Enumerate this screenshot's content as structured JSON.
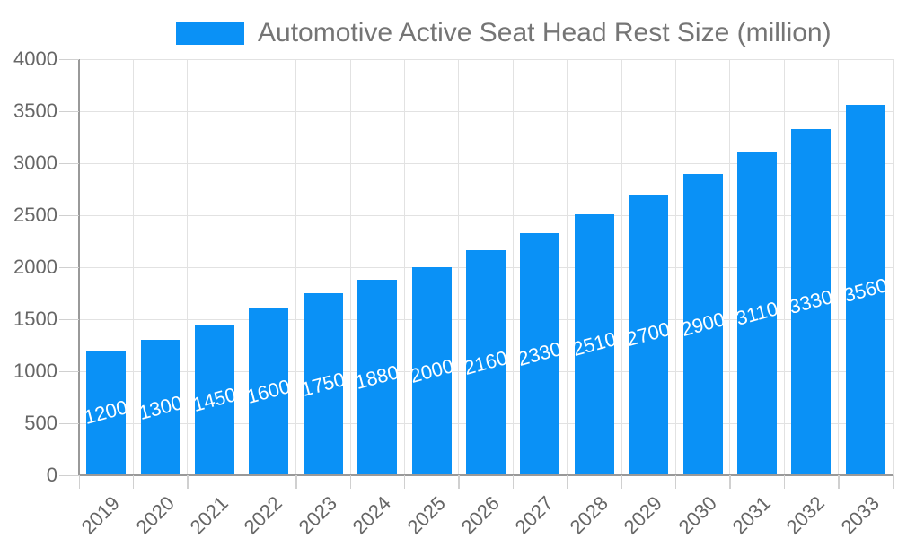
{
  "chart_data": {
    "type": "bar",
    "title": "Automotive Active Seat Head Rest Size (million)",
    "legend": [
      "Automotive Active Seat Head Rest Size (million)"
    ],
    "legend_position": "top",
    "categories": [
      "2019",
      "2020",
      "2021",
      "2022",
      "2023",
      "2024",
      "2025",
      "2026",
      "2027",
      "2028",
      "2029",
      "2030",
      "2031",
      "2032",
      "2033"
    ],
    "values": [
      1200,
      1300,
      1450,
      1600,
      1750,
      1880,
      2000,
      2160,
      2330,
      2510,
      2700,
      2900,
      3110,
      3330,
      3560
    ],
    "value_labels": [
      "1200",
      "1300",
      "1450",
      "1600",
      "1750",
      "1880",
      "2000",
      "2160",
      "2330",
      "2510",
      "2700",
      "2900",
      "3110",
      "3330",
      "3560"
    ],
    "xlabel": "",
    "ylabel": "",
    "ylim": [
      0,
      4000
    ],
    "ytick_step": 500,
    "ytick_labels": [
      "0",
      "500",
      "1000",
      "1500",
      "2000",
      "2500",
      "3000",
      "3500",
      "4000"
    ],
    "grid": true,
    "colors": {
      "bar": "#0a91f6",
      "value_label": "#ffffff",
      "grid": "#e2e2e2",
      "axis": "#999999",
      "tick": "#d0d0d0",
      "axis_text": "#666666",
      "legend_text": "#757575",
      "background": "#ffffff"
    }
  }
}
